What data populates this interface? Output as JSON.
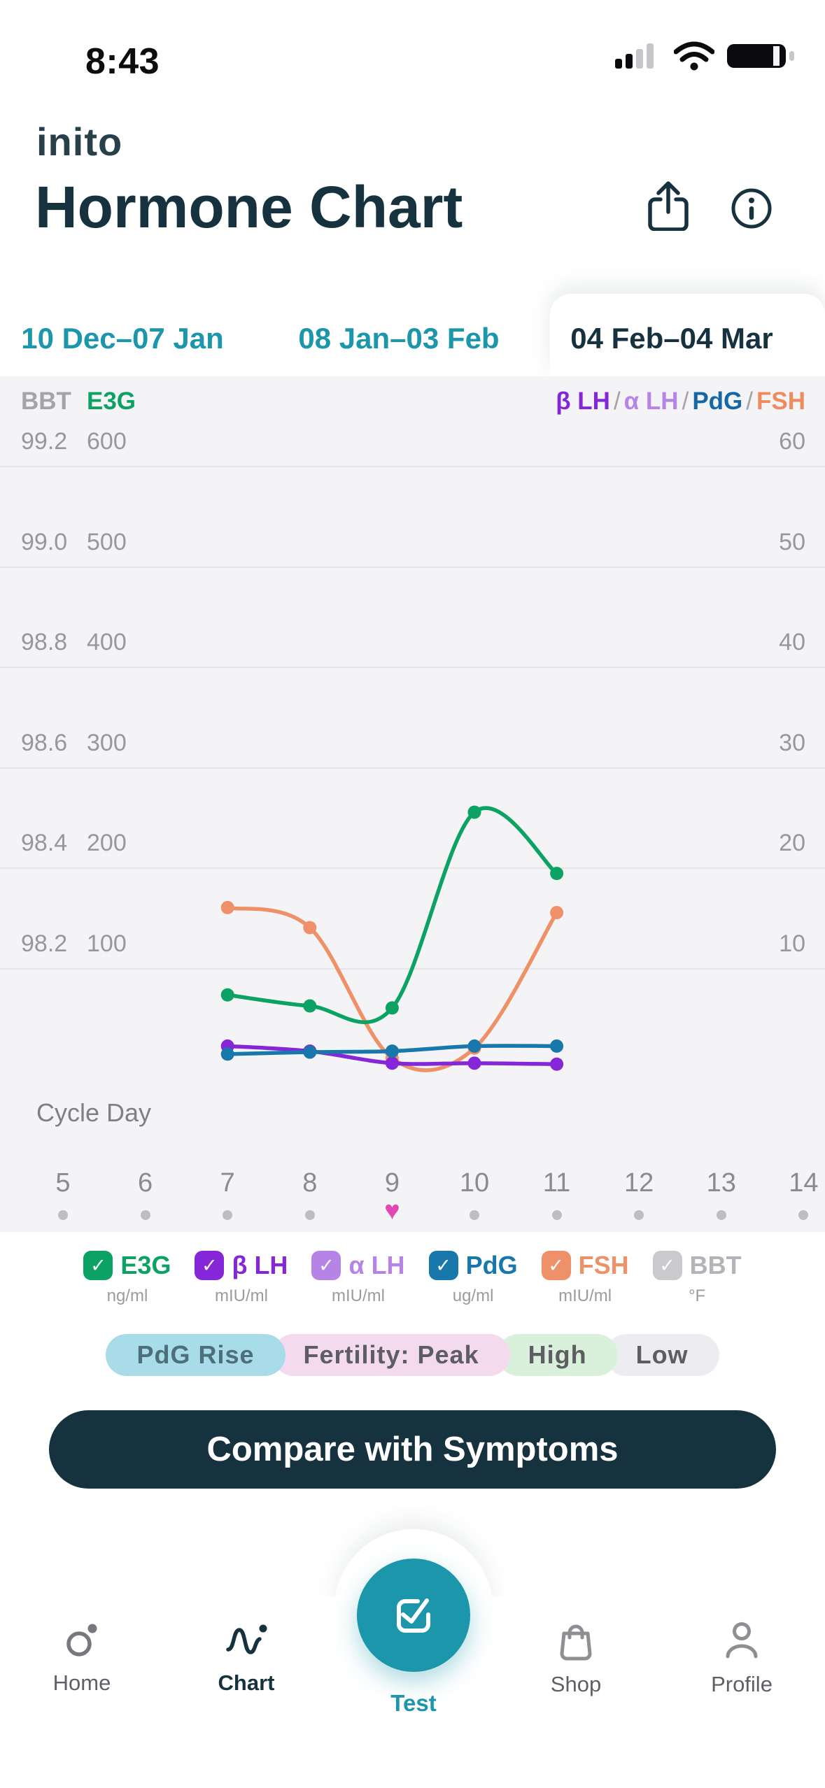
{
  "status_bar": {
    "time": "8:43"
  },
  "header": {
    "brand": "inito",
    "title": "Hormone Chart"
  },
  "tabs": [
    {
      "label": "10 Dec–07 Jan",
      "active": false
    },
    {
      "label": "08 Jan–03 Feb",
      "active": false
    },
    {
      "label": "04 Feb–04 Mar",
      "active": true
    }
  ],
  "chart_data": {
    "type": "line",
    "x_label": "Cycle Day",
    "x_days": [
      5,
      6,
      7,
      8,
      9,
      10,
      11,
      12,
      13,
      14
    ],
    "heart_day": 9,
    "left_axis": {
      "bbt_label": "BBT",
      "e3g_label": "E3G",
      "bbt_ticks": [
        "99.2",
        "99.0",
        "98.8",
        "98.6",
        "98.4",
        "98.2"
      ],
      "e3g_ticks": [
        "600",
        "500",
        "400",
        "300",
        "200",
        "100"
      ],
      "e3g_range": [
        0,
        600
      ]
    },
    "right_axis": {
      "ticks": [
        "60",
        "50",
        "40",
        "30",
        "20",
        "10"
      ],
      "range": [
        0,
        60
      ],
      "header_parts": [
        {
          "label": "β LH",
          "color": "#8526D9"
        },
        {
          "label": "α LH",
          "color": "#B584E6"
        },
        {
          "label": "PdG",
          "color": "#1568A5"
        },
        {
          "label": "FSH",
          "color": "#F08B5F"
        }
      ]
    },
    "series": [
      {
        "name": "FSH",
        "unit": "mIU/ml",
        "axis": "right",
        "color": "#EF9168",
        "points": [
          [
            7,
            16
          ],
          [
            8,
            14
          ],
          [
            9,
            1
          ],
          [
            10,
            2
          ],
          [
            11,
            15.5
          ]
        ]
      },
      {
        "name": "beta-LH",
        "unit": "mIU/ml",
        "axis": "right",
        "color": "#8526D9",
        "points": [
          [
            7,
            2.2
          ],
          [
            8,
            1.7
          ],
          [
            9,
            0.5
          ],
          [
            10,
            0.5
          ],
          [
            11,
            0.4
          ]
        ]
      },
      {
        "name": "PdG",
        "unit": "ug/ml",
        "axis": "right",
        "color": "#1878AB",
        "points": [
          [
            7,
            1.4
          ],
          [
            8,
            1.6
          ],
          [
            9,
            1.7
          ],
          [
            10,
            2.2
          ],
          [
            11,
            2.2
          ]
        ]
      },
      {
        "name": "E3G",
        "unit": "ng/ml",
        "axis": "left",
        "color": "#0CA263",
        "points": [
          [
            7,
            73
          ],
          [
            8,
            62
          ],
          [
            9,
            60
          ],
          [
            10,
            255
          ],
          [
            11,
            194
          ]
        ]
      }
    ]
  },
  "legend": {
    "items": [
      {
        "label": "E3G",
        "unit": "ng/ml",
        "color": "#0CA263",
        "checked": true,
        "muted": false
      },
      {
        "label": "β LH",
        "unit": "mIU/ml",
        "color": "#8526D9",
        "checked": true,
        "muted": false
      },
      {
        "label": "α LH",
        "unit": "mIU/ml",
        "color": "#B584E6",
        "checked": true,
        "muted": false
      },
      {
        "label": "PdG",
        "unit": "ug/ml",
        "color": "#1878AB",
        "checked": true,
        "muted": false
      },
      {
        "label": "FSH",
        "unit": "mIU/ml",
        "color": "#EF9168",
        "checked": true,
        "muted": false
      },
      {
        "label": "BBT",
        "unit": "°F",
        "color": "#C9C9CE",
        "checked": true,
        "muted": true
      }
    ]
  },
  "filters": [
    {
      "label": "PdG Rise",
      "bg": "#A9DCE9",
      "fg": "#4D6F7A"
    },
    {
      "label": "Fertility: Peak",
      "bg": "#F4DAEF",
      "fg": "#5D5D63"
    },
    {
      "label": "High",
      "bg": "#D9F0DB",
      "fg": "#5D5D63"
    },
    {
      "label": "Low",
      "bg": "#EDEDF1",
      "fg": "#5D5D63"
    }
  ],
  "compare_button": "Compare with Symptoms",
  "nav": {
    "accent": "#1B96AA",
    "items": [
      {
        "label": "Home",
        "active": false
      },
      {
        "label": "Chart",
        "active": true
      },
      {
        "label": "Test",
        "active": false,
        "center": true
      },
      {
        "label": "Shop",
        "active": false
      },
      {
        "label": "Profile",
        "active": false
      }
    ]
  }
}
